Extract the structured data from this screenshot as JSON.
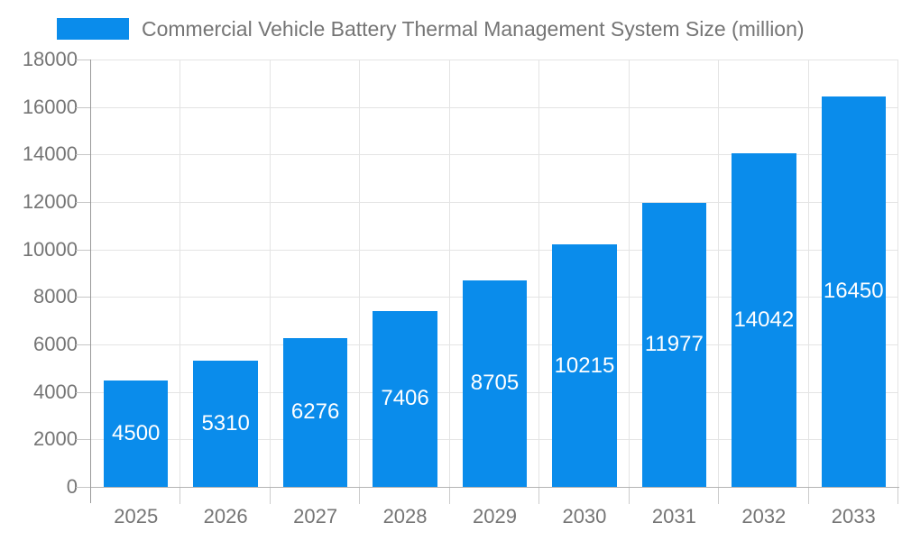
{
  "chart_data": {
    "type": "bar",
    "title": "Commercial Vehicle Battery Thermal Management System Size (million)",
    "categories": [
      "2025",
      "2026",
      "2027",
      "2028",
      "2029",
      "2030",
      "2031",
      "2032",
      "2033"
    ],
    "values": [
      4500,
      5310,
      6276,
      7406,
      8705,
      10215,
      11977,
      14042,
      16450
    ],
    "value_labels": [
      "4500",
      "5310",
      "6276",
      "7406",
      "8705",
      "10215",
      "11977",
      "14042",
      "16450"
    ],
    "xlabel": "",
    "ylabel": "",
    "ylim": [
      0,
      18000
    ],
    "ytick_step": 2000,
    "ytick_labels": [
      "0",
      "2000",
      "4000",
      "6000",
      "8000",
      "10000",
      "12000",
      "14000",
      "16000",
      "18000"
    ],
    "grid": true,
    "legend_position": "top",
    "colors": {
      "bar": "#0a8ceb",
      "value_label": "#ffffff",
      "axis_text": "#757575",
      "title_text": "#757575",
      "gridline": "#e4e4e4",
      "y_axis_line": "#999999",
      "x_axis_line": "#b3b3b3"
    }
  }
}
